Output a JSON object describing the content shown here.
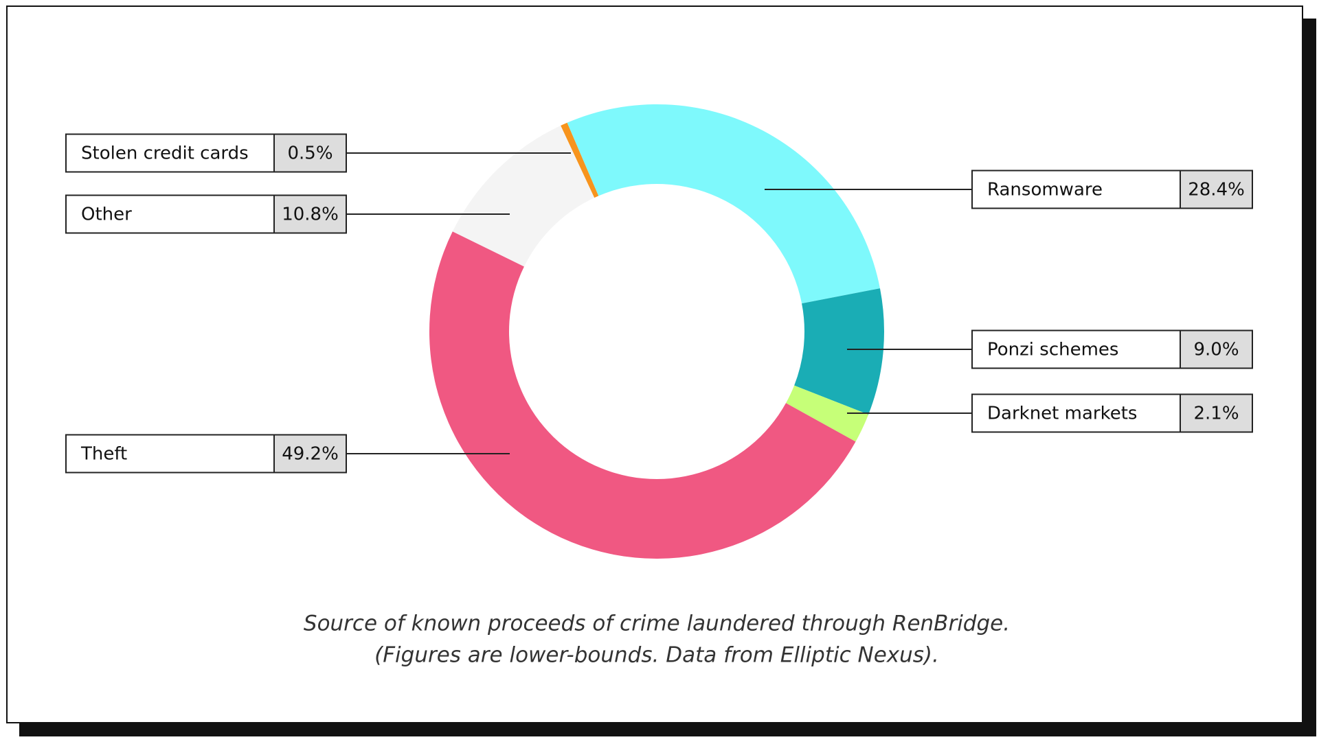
{
  "chart_data": {
    "type": "donut",
    "categories": [
      "Stolen credit cards",
      "Ransomware",
      "Ponzi schemes",
      "Darknet markets",
      "Theft",
      "Other"
    ],
    "values": [
      0.5,
      28.4,
      9.0,
      2.1,
      49.2,
      10.8
    ],
    "value_labels": [
      "0.5%",
      "28.4%",
      "9.0%",
      "2.1%",
      "49.2%",
      "10.8%"
    ],
    "colors": [
      "#f7941d",
      "#7ef9fc",
      "#1aadb5",
      "#c6ff78",
      "#f05882",
      "#f4f4f4"
    ],
    "caption": [
      "Source of known proceeds of crime laundered through RenBridge.",
      "(Figures are lower-bounds. Data from Elliptic Nexus)."
    ]
  }
}
